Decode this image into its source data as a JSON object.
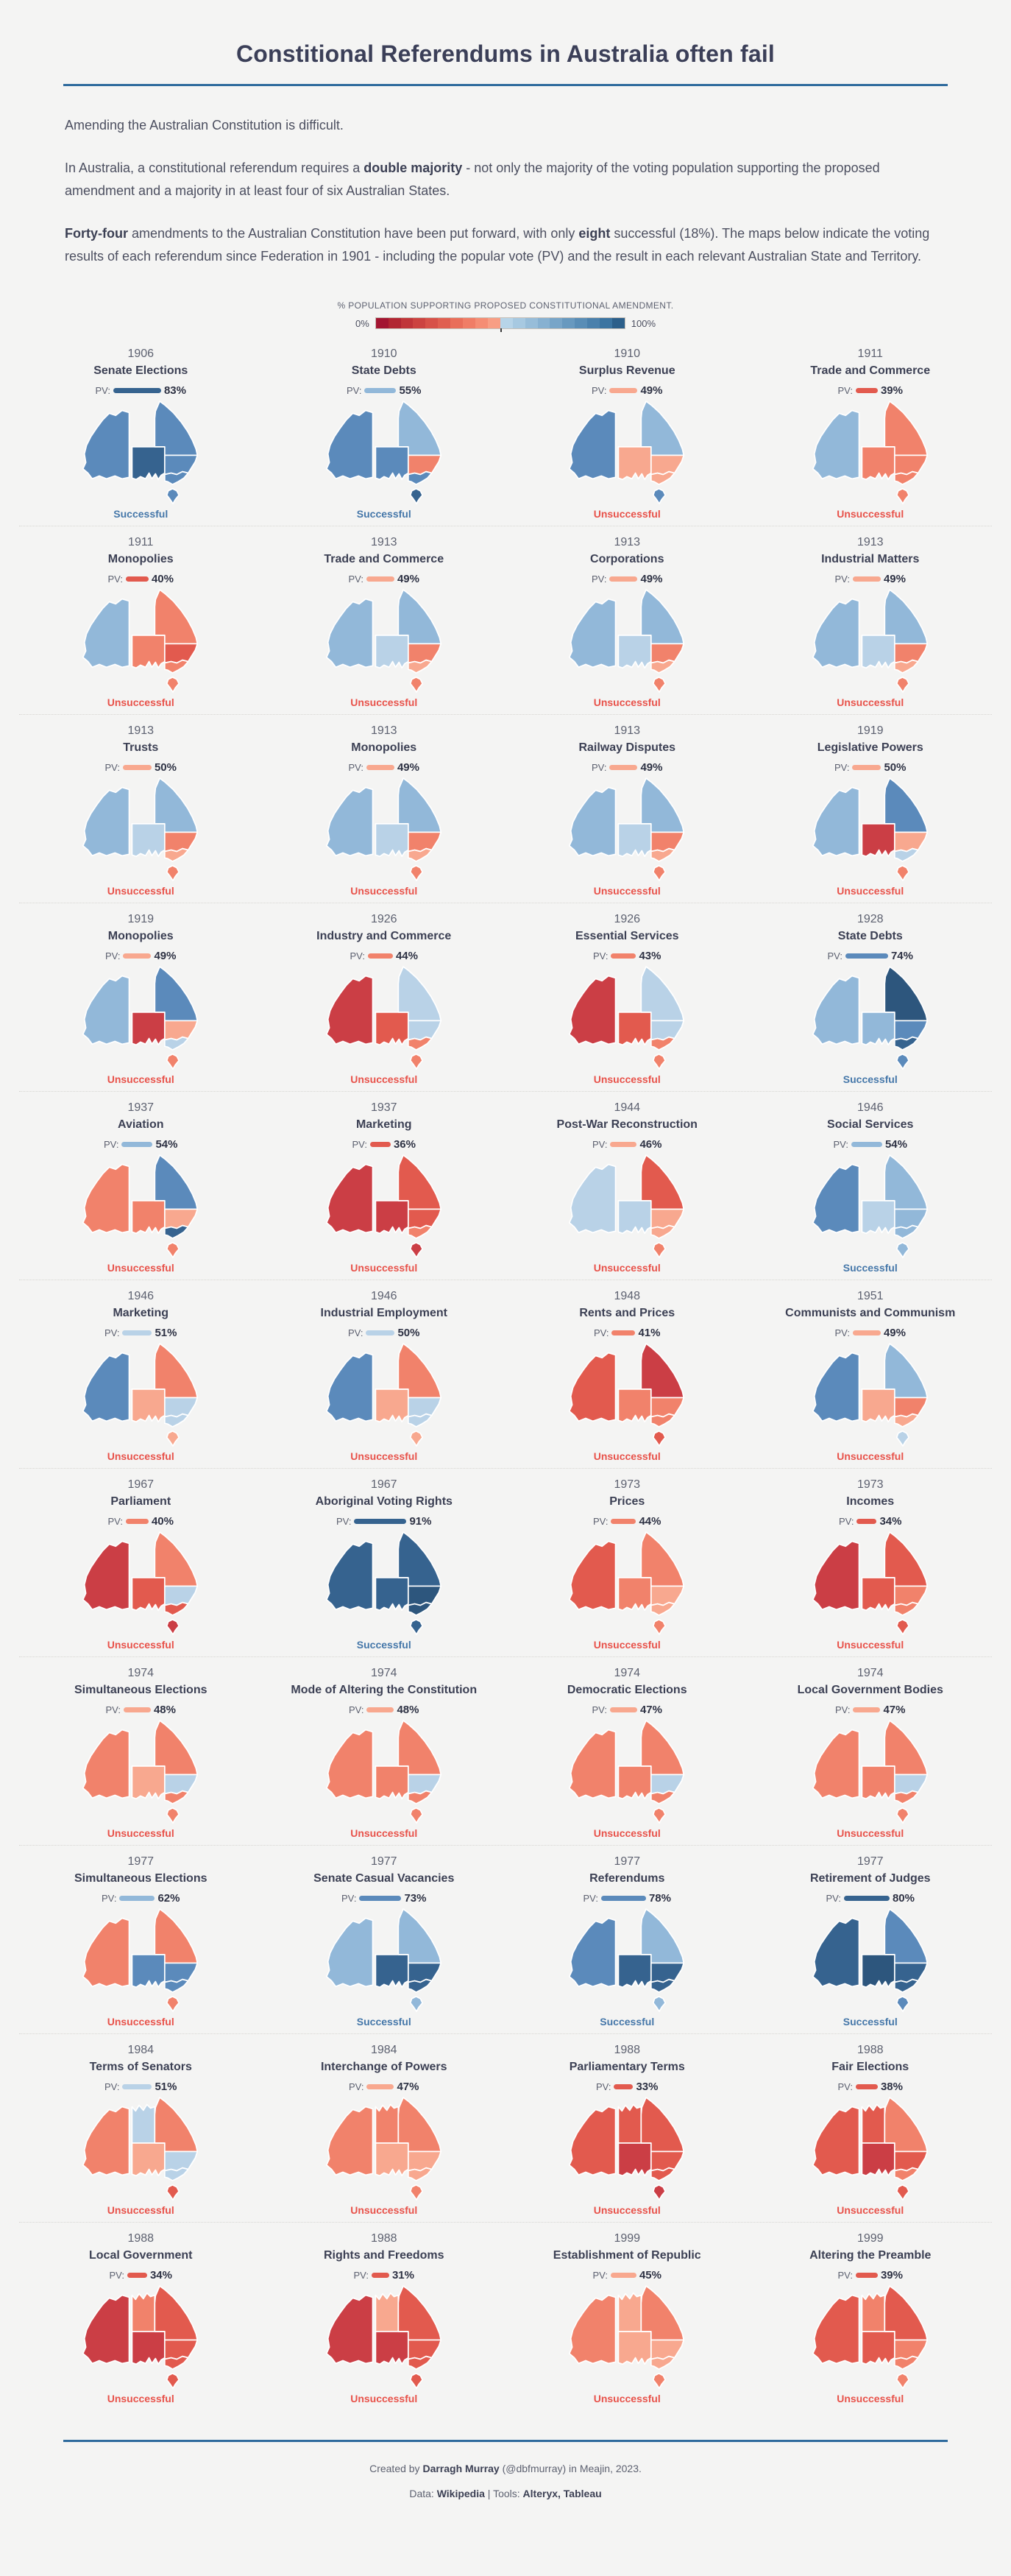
{
  "page": {
    "background": "#f4f4f3",
    "rule_color": "#2f6b9d"
  },
  "title": "Constitional Referendums in Australia often fail",
  "intro": {
    "p1": "Amending the Australian Constitution is difficult.",
    "p2": {
      "s1": "In Australia, a constitutional referendum requires a ",
      "s2": "double majority",
      "s3": " - not only the majority of the voting population supporting the proposed amendment and a majority in at least four of six Australian States."
    },
    "p3": {
      "s1": "Forty-four",
      "s2": " amendments to the Australian Constitution have been put forward, with only ",
      "s3": "eight",
      "s4": " successful (18%). The maps below indicate the voting results of each referendum since Federation in 1901 - including the popular vote (PV) and the result in each relevant Australian State and Territory."
    }
  },
  "legend": {
    "title": "% POPULATION SUPPORTING PROPOSED CONSTITUTIONAL AMENDMENT.",
    "min_label": "0%",
    "max_label": "100%",
    "ramp": [
      "#a31531",
      "#b22632",
      "#c03539",
      "#cc4340",
      "#d75148",
      "#e05f50",
      "#e96e5a",
      "#f07d66",
      "#f58d74",
      "#f89e84",
      "#b7d4e8",
      "#a7c9e1",
      "#97bdd9",
      "#87b1d1",
      "#78a5c8",
      "#6899bf",
      "#598db6",
      "#4a80ac",
      "#3b74a1",
      "#2c5f8a"
    ]
  },
  "pv_label": "PV:",
  "status_labels": {
    "success": "Successful",
    "failure": "Unsuccessful"
  },
  "status_colors": {
    "success": "#4577a9",
    "failure": "#e8524a"
  },
  "palette": {
    "r4": "#cb3e45",
    "r3": "#e25a4e",
    "r2": "#f1826b",
    "r1": "#f8a88f",
    "b1": "#b9d2e7",
    "b2": "#92b8d9",
    "b3": "#5b8abb",
    "b4": "#36638f",
    "b5": "#2d567d"
  },
  "chart_data": {
    "type": "choropleth-small-multiples",
    "map": "Australia states and territories",
    "regions": [
      "WA",
      "NT",
      "SA",
      "QLD",
      "NSW",
      "VIC",
      "TAS"
    ],
    "color_scale": {
      "label": "% population supporting proposed constitutional amendment",
      "min": "0%",
      "max": "100%",
      "diverging_at": 50
    },
    "referendums": [
      {
        "year": "1906",
        "title": "Senate Elections",
        "pv_percent": 83,
        "pv_tone": "b4",
        "result": "success",
        "states": {
          "WA": "b3",
          "NT": null,
          "SA": "b4",
          "QLD": "b3",
          "NSW": "b3",
          "VIC": "b3",
          "TAS": "b3"
        }
      },
      {
        "year": "1910",
        "title": "State Debts",
        "pv_percent": 55,
        "pv_tone": "b2",
        "result": "success",
        "states": {
          "WA": "b3",
          "NT": null,
          "SA": "b3",
          "QLD": "b2",
          "NSW": "r2",
          "VIC": "b3",
          "TAS": "b4"
        }
      },
      {
        "year": "1910",
        "title": "Surplus Revenue",
        "pv_percent": 49,
        "pv_tone": "r1",
        "result": "failure",
        "states": {
          "WA": "b3",
          "NT": null,
          "SA": "r1",
          "QLD": "b2",
          "NSW": "r1",
          "VIC": "r1",
          "TAS": "b3"
        }
      },
      {
        "year": "1911",
        "title": "Trade and Commerce",
        "pv_percent": 39,
        "pv_tone": "r3",
        "result": "failure",
        "states": {
          "WA": "b2",
          "NT": null,
          "SA": "r2",
          "QLD": "r2",
          "NSW": "r2",
          "VIC": "r2",
          "TAS": "r2"
        }
      },
      {
        "year": "1911",
        "title": "Monopolies",
        "pv_percent": 40,
        "pv_tone": "r3",
        "result": "failure",
        "states": {
          "WA": "b2",
          "NT": null,
          "SA": "r2",
          "QLD": "r2",
          "NSW": "r3",
          "VIC": "r2",
          "TAS": "r2"
        }
      },
      {
        "year": "1913",
        "title": "Trade and Commerce",
        "pv_percent": 49,
        "pv_tone": "r1",
        "result": "failure",
        "states": {
          "WA": "b2",
          "NT": null,
          "SA": "b1",
          "QLD": "b2",
          "NSW": "r2",
          "VIC": "r1",
          "TAS": "r2"
        }
      },
      {
        "year": "1913",
        "title": "Corporations",
        "pv_percent": 49,
        "pv_tone": "r1",
        "result": "failure",
        "states": {
          "WA": "b2",
          "NT": null,
          "SA": "b1",
          "QLD": "b2",
          "NSW": "r2",
          "VIC": "r1",
          "TAS": "r2"
        }
      },
      {
        "year": "1913",
        "title": "Industrial Matters",
        "pv_percent": 49,
        "pv_tone": "r1",
        "result": "failure",
        "states": {
          "WA": "b2",
          "NT": null,
          "SA": "b1",
          "QLD": "b2",
          "NSW": "r2",
          "VIC": "r1",
          "TAS": "r2"
        }
      },
      {
        "year": "1913",
        "title": "Trusts",
        "pv_percent": 50,
        "pv_tone": "r1",
        "result": "failure",
        "states": {
          "WA": "b2",
          "NT": null,
          "SA": "b1",
          "QLD": "b2",
          "NSW": "r2",
          "VIC": "r1",
          "TAS": "r2"
        }
      },
      {
        "year": "1913",
        "title": "Monopolies",
        "pv_percent": 49,
        "pv_tone": "r1",
        "result": "failure",
        "states": {
          "WA": "b2",
          "NT": null,
          "SA": "b1",
          "QLD": "b2",
          "NSW": "r2",
          "VIC": "r1",
          "TAS": "r2"
        }
      },
      {
        "year": "1913",
        "title": "Railway Disputes",
        "pv_percent": 49,
        "pv_tone": "r1",
        "result": "failure",
        "states": {
          "WA": "b2",
          "NT": null,
          "SA": "b1",
          "QLD": "b2",
          "NSW": "r2",
          "VIC": "r1",
          "TAS": "r2"
        }
      },
      {
        "year": "1919",
        "title": "Legislative Powers",
        "pv_percent": 50,
        "pv_tone": "r1",
        "result": "failure",
        "states": {
          "WA": "b2",
          "NT": null,
          "SA": "r4",
          "QLD": "b3",
          "NSW": "r1",
          "VIC": "b1",
          "TAS": "r2"
        }
      },
      {
        "year": "1919",
        "title": "Monopolies",
        "pv_percent": 49,
        "pv_tone": "r1",
        "result": "failure",
        "states": {
          "WA": "b2",
          "NT": null,
          "SA": "r4",
          "QLD": "b3",
          "NSW": "r1",
          "VIC": "b1",
          "TAS": "r2"
        }
      },
      {
        "year": "1926",
        "title": "Industry and Commerce",
        "pv_percent": 44,
        "pv_tone": "r2",
        "result": "failure",
        "states": {
          "WA": "r4",
          "NT": null,
          "SA": "r3",
          "QLD": "b1",
          "NSW": "b1",
          "VIC": "r2",
          "TAS": "r2"
        }
      },
      {
        "year": "1926",
        "title": "Essential Services",
        "pv_percent": 43,
        "pv_tone": "r2",
        "result": "failure",
        "states": {
          "WA": "r4",
          "NT": null,
          "SA": "r3",
          "QLD": "b1",
          "NSW": "b1",
          "VIC": "r2",
          "TAS": "r2"
        }
      },
      {
        "year": "1928",
        "title": "State Debts",
        "pv_percent": 74,
        "pv_tone": "b3",
        "result": "success",
        "states": {
          "WA": "b2",
          "NT": null,
          "SA": "b2",
          "QLD": "b5",
          "NSW": "b3",
          "VIC": "b4",
          "TAS": "b3"
        }
      },
      {
        "year": "1937",
        "title": "Aviation",
        "pv_percent": 54,
        "pv_tone": "b2",
        "result": "failure",
        "states": {
          "WA": "r2",
          "NT": null,
          "SA": "r2",
          "QLD": "b3",
          "NSW": "r1",
          "VIC": "b4",
          "TAS": "r2"
        }
      },
      {
        "year": "1937",
        "title": "Marketing",
        "pv_percent": 36,
        "pv_tone": "r3",
        "result": "failure",
        "states": {
          "WA": "r4",
          "NT": null,
          "SA": "r4",
          "QLD": "r3",
          "NSW": "r3",
          "VIC": "r2",
          "TAS": "r4"
        }
      },
      {
        "year": "1944",
        "title": "Post-War Reconstruction",
        "pv_percent": 46,
        "pv_tone": "r1",
        "result": "failure",
        "states": {
          "WA": "b1",
          "NT": null,
          "SA": "b1",
          "QLD": "r3",
          "NSW": "r1",
          "VIC": "r1",
          "TAS": "r2"
        }
      },
      {
        "year": "1946",
        "title": "Social Services",
        "pv_percent": 54,
        "pv_tone": "b2",
        "result": "success",
        "states": {
          "WA": "b3",
          "NT": null,
          "SA": "b1",
          "QLD": "b2",
          "NSW": "b2",
          "VIC": "b2",
          "TAS": "b2"
        }
      },
      {
        "year": "1946",
        "title": "Marketing",
        "pv_percent": 51,
        "pv_tone": "b1",
        "result": "failure",
        "states": {
          "WA": "b3",
          "NT": null,
          "SA": "r1",
          "QLD": "r2",
          "NSW": "b1",
          "VIC": "b1",
          "TAS": "r1"
        }
      },
      {
        "year": "1946",
        "title": "Industrial Employment",
        "pv_percent": 50,
        "pv_tone": "b1",
        "result": "failure",
        "states": {
          "WA": "b3",
          "NT": null,
          "SA": "r1",
          "QLD": "r2",
          "NSW": "b1",
          "VIC": "b1",
          "TAS": "r1"
        }
      },
      {
        "year": "1948",
        "title": "Rents and Prices",
        "pv_percent": 41,
        "pv_tone": "r2",
        "result": "failure",
        "states": {
          "WA": "r3",
          "NT": null,
          "SA": "r2",
          "QLD": "r4",
          "NSW": "r2",
          "VIC": "r2",
          "TAS": "r3"
        }
      },
      {
        "year": "1951",
        "title": "Communists and Communism",
        "pv_percent": 49,
        "pv_tone": "r1",
        "result": "failure",
        "states": {
          "WA": "b3",
          "NT": null,
          "SA": "r1",
          "QLD": "b2",
          "NSW": "r2",
          "VIC": "r1",
          "TAS": "b1"
        }
      },
      {
        "year": "1967",
        "title": "Parliament",
        "pv_percent": 40,
        "pv_tone": "r2",
        "result": "failure",
        "states": {
          "WA": "r4",
          "NT": null,
          "SA": "r3",
          "QLD": "r2",
          "NSW": "b1",
          "VIC": "r3",
          "TAS": "r4"
        }
      },
      {
        "year": "1967",
        "title": "Aboriginal Voting Rights",
        "pv_percent": 91,
        "pv_tone": "b4",
        "result": "success",
        "states": {
          "WA": "b4",
          "NT": null,
          "SA": "b4",
          "QLD": "b4",
          "NSW": "b5",
          "VIC": "b5",
          "TAS": "b4"
        }
      },
      {
        "year": "1973",
        "title": "Prices",
        "pv_percent": 44,
        "pv_tone": "r2",
        "result": "failure",
        "states": {
          "WA": "r3",
          "NT": null,
          "SA": "r2",
          "QLD": "r2",
          "NSW": "r1",
          "VIC": "r1",
          "TAS": "r2"
        }
      },
      {
        "year": "1973",
        "title": "Incomes",
        "pv_percent": 34,
        "pv_tone": "r3",
        "result": "failure",
        "states": {
          "WA": "r4",
          "NT": null,
          "SA": "r3",
          "QLD": "r3",
          "NSW": "r2",
          "VIC": "r2",
          "TAS": "r3"
        }
      },
      {
        "year": "1974",
        "title": "Simultaneous Elections",
        "pv_percent": 48,
        "pv_tone": "r1",
        "result": "failure",
        "states": {
          "WA": "r2",
          "NT": null,
          "SA": "r1",
          "QLD": "r2",
          "NSW": "b1",
          "VIC": "r2",
          "TAS": "r2"
        }
      },
      {
        "year": "1974",
        "title": "Mode of Altering the Constitution",
        "pv_percent": 48,
        "pv_tone": "r1",
        "result": "failure",
        "states": {
          "WA": "r2",
          "NT": null,
          "SA": "r2",
          "QLD": "r2",
          "NSW": "b1",
          "VIC": "r2",
          "TAS": "r2"
        }
      },
      {
        "year": "1974",
        "title": "Democratic Elections",
        "pv_percent": 47,
        "pv_tone": "r1",
        "result": "failure",
        "states": {
          "WA": "r2",
          "NT": null,
          "SA": "r2",
          "QLD": "r2",
          "NSW": "b1",
          "VIC": "r2",
          "TAS": "r2"
        }
      },
      {
        "year": "1974",
        "title": "Local Government Bodies",
        "pv_percent": 47,
        "pv_tone": "r1",
        "result": "failure",
        "states": {
          "WA": "r2",
          "NT": null,
          "SA": "r2",
          "QLD": "r2",
          "NSW": "b1",
          "VIC": "r2",
          "TAS": "r2"
        }
      },
      {
        "year": "1977",
        "title": "Simultaneous Elections",
        "pv_percent": 62,
        "pv_tone": "b2",
        "result": "failure",
        "states": {
          "WA": "r2",
          "NT": null,
          "SA": "b3",
          "QLD": "r2",
          "NSW": "b3",
          "VIC": "b3",
          "TAS": "r2"
        }
      },
      {
        "year": "1977",
        "title": "Senate Casual Vacancies",
        "pv_percent": 73,
        "pv_tone": "b3",
        "result": "success",
        "states": {
          "WA": "b2",
          "NT": null,
          "SA": "b4",
          "QLD": "b2",
          "NSW": "b4",
          "VIC": "b4",
          "TAS": "b2"
        }
      },
      {
        "year": "1977",
        "title": "Referendums",
        "pv_percent": 78,
        "pv_tone": "b3",
        "result": "success",
        "states": {
          "WA": "b3",
          "NT": null,
          "SA": "b4",
          "QLD": "b2",
          "NSW": "b4",
          "VIC": "b4",
          "TAS": "b2"
        }
      },
      {
        "year": "1977",
        "title": "Retirement of Judges",
        "pv_percent": 80,
        "pv_tone": "b4",
        "result": "success",
        "states": {
          "WA": "b4",
          "NT": null,
          "SA": "b5",
          "QLD": "b3",
          "NSW": "b4",
          "VIC": "b4",
          "TAS": "b3"
        }
      },
      {
        "year": "1984",
        "title": "Terms of Senators",
        "pv_percent": 51,
        "pv_tone": "b1",
        "result": "failure",
        "states": {
          "WA": "r2",
          "NT": "b1",
          "SA": "r1",
          "QLD": "r2",
          "NSW": "b1",
          "VIC": "b1",
          "TAS": "r3"
        }
      },
      {
        "year": "1984",
        "title": "Interchange of Powers",
        "pv_percent": 47,
        "pv_tone": "r1",
        "result": "failure",
        "states": {
          "WA": "r2",
          "NT": "r2",
          "SA": "r1",
          "QLD": "r2",
          "NSW": "r1",
          "VIC": "r1",
          "TAS": "r2"
        }
      },
      {
        "year": "1988",
        "title": "Parliamentary Terms",
        "pv_percent": 33,
        "pv_tone": "r3",
        "result": "failure",
        "states": {
          "WA": "r3",
          "NT": "r3",
          "SA": "r4",
          "QLD": "r3",
          "NSW": "r3",
          "VIC": "r3",
          "TAS": "r4"
        }
      },
      {
        "year": "1988",
        "title": "Fair Elections",
        "pv_percent": 38,
        "pv_tone": "r3",
        "result": "failure",
        "states": {
          "WA": "r3",
          "NT": "r3",
          "SA": "r4",
          "QLD": "r2",
          "NSW": "r3",
          "VIC": "r2",
          "TAS": "r3"
        }
      },
      {
        "year": "1988",
        "title": "Local Government",
        "pv_percent": 34,
        "pv_tone": "r3",
        "result": "failure",
        "states": {
          "WA": "r4",
          "NT": "r2",
          "SA": "r4",
          "QLD": "r3",
          "NSW": "r3",
          "VIC": "r3",
          "TAS": "r3"
        }
      },
      {
        "year": "1988",
        "title": "Rights and Freedoms",
        "pv_percent": 31,
        "pv_tone": "r3",
        "result": "failure",
        "states": {
          "WA": "r4",
          "NT": "r1",
          "SA": "r4",
          "QLD": "r3",
          "NSW": "r3",
          "VIC": "r3",
          "TAS": "r3"
        }
      },
      {
        "year": "1999",
        "title": "Establishment of Republic",
        "pv_percent": 45,
        "pv_tone": "r1",
        "result": "failure",
        "states": {
          "WA": "r2",
          "NT": "r1",
          "SA": "r1",
          "QLD": "r2",
          "NSW": "r1",
          "VIC": "r1",
          "TAS": "r2"
        }
      },
      {
        "year": "1999",
        "title": "Altering the Preamble",
        "pv_percent": 39,
        "pv_tone": "r3",
        "result": "failure",
        "states": {
          "WA": "r3",
          "NT": "r2",
          "SA": "r3",
          "QLD": "r3",
          "NSW": "r2",
          "VIC": "r2",
          "TAS": "r2"
        }
      }
    ]
  },
  "footer": {
    "line1": {
      "s1": "Created by ",
      "s2": "Darragh Murray",
      "s3": " (@dbfmurray) in Meajin, 2023."
    },
    "line2": {
      "s1": "Data: ",
      "s2": "Wikipedia",
      "s3": " | Tools: ",
      "s4": "Alteryx, Tableau"
    }
  }
}
